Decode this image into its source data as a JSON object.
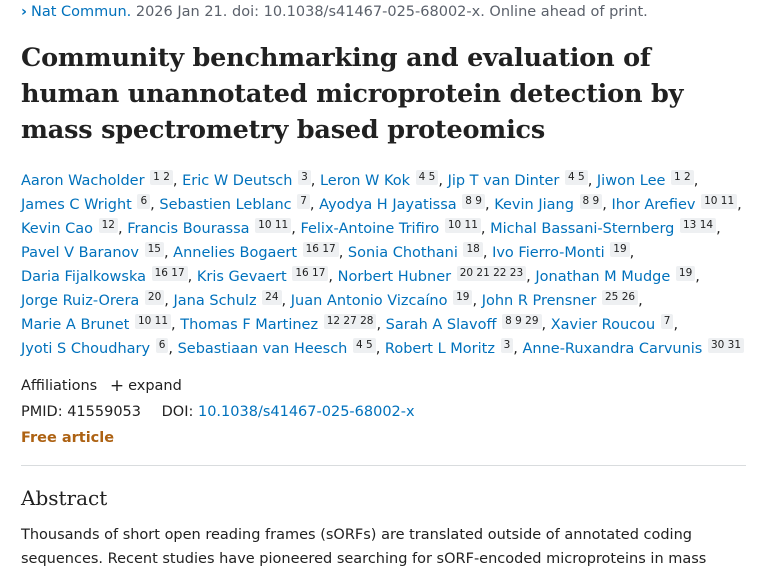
{
  "citation": {
    "journal": "Nat Commun.",
    "details": "2026 Jan 21. doi: 10.1038/s41467-025-68002-x. Online ahead of print."
  },
  "title": "Community benchmarking and evaluation of human unannotated microprotein detection by mass spectrometry based proteomics",
  "authors": [
    {
      "name": "Aaron Wacholder",
      "affs": "1 2"
    },
    {
      "name": "Eric W Deutsch",
      "affs": "3"
    },
    {
      "name": "Leron W Kok",
      "affs": "4 5"
    },
    {
      "name": "Jip T van Dinter",
      "affs": "4 5"
    },
    {
      "name": "Jiwon Lee",
      "affs": "1 2"
    },
    {
      "name": "James C Wright",
      "affs": "6"
    },
    {
      "name": "Sebastien Leblanc",
      "affs": "7"
    },
    {
      "name": "Ayodya H Jayatissa",
      "affs": "8 9"
    },
    {
      "name": "Kevin Jiang",
      "affs": "8 9"
    },
    {
      "name": "Ihor Arefiev",
      "affs": "10 11"
    },
    {
      "name": "Kevin Cao",
      "affs": "12"
    },
    {
      "name": "Francis Bourassa",
      "affs": "10 11"
    },
    {
      "name": "Felix-Antoine Trifiro",
      "affs": "10 11"
    },
    {
      "name": "Michal Bassani-Sternberg",
      "affs": "13 14"
    },
    {
      "name": "Pavel V Baranov",
      "affs": "15"
    },
    {
      "name": "Annelies Bogaert",
      "affs": "16 17"
    },
    {
      "name": "Sonia Chothani",
      "affs": "18"
    },
    {
      "name": "Ivo Fierro-Monti",
      "affs": "19"
    },
    {
      "name": "Daria Fijalkowska",
      "affs": "16 17"
    },
    {
      "name": "Kris Gevaert",
      "affs": "16 17"
    },
    {
      "name": "Norbert Hubner",
      "affs": "20 21 22 23"
    },
    {
      "name": "Jonathan M Mudge",
      "affs": "19"
    },
    {
      "name": "Jorge Ruiz-Orera",
      "affs": "20"
    },
    {
      "name": "Jana Schulz",
      "affs": "24"
    },
    {
      "name": "Juan Antonio Vizcaíno",
      "affs": "19"
    },
    {
      "name": "John R Prensner",
      "affs": "25 26"
    },
    {
      "name": "Marie A Brunet",
      "affs": "10 11"
    },
    {
      "name": "Thomas F Martinez",
      "affs": "12 27 28"
    },
    {
      "name": "Sarah A Slavoff",
      "affs": "8 9 29"
    },
    {
      "name": "Xavier Roucou",
      "affs": "7"
    },
    {
      "name": "Jyoti S Choudhary",
      "affs": "6"
    },
    {
      "name": "Sebastiaan van Heesch",
      "affs": "4 5"
    },
    {
      "name": "Robert L Moritz",
      "affs": "3"
    },
    {
      "name": "Anne-Ruxandra Carvunis",
      "affs": "30 31"
    }
  ],
  "affiliations": {
    "label": "Affiliations",
    "expand_icon": "+",
    "expand_label": "expand"
  },
  "ids": {
    "pmid_label": "PMID:",
    "pmid": "41559053",
    "doi_label": "DOI:",
    "doi": "10.1038/s41467-025-68002-x"
  },
  "free_article": "Free article",
  "abstract": {
    "heading": "Abstract",
    "text": "Thousands of short open reading frames (sORFs) are translated outside of annotated coding sequences. Recent studies have pioneered searching for sORF-encoded microproteins in mass"
  },
  "colors": {
    "link": "#0071bc",
    "free_article": "#ad6213",
    "aff_badge_bg": "#eef0f2"
  }
}
